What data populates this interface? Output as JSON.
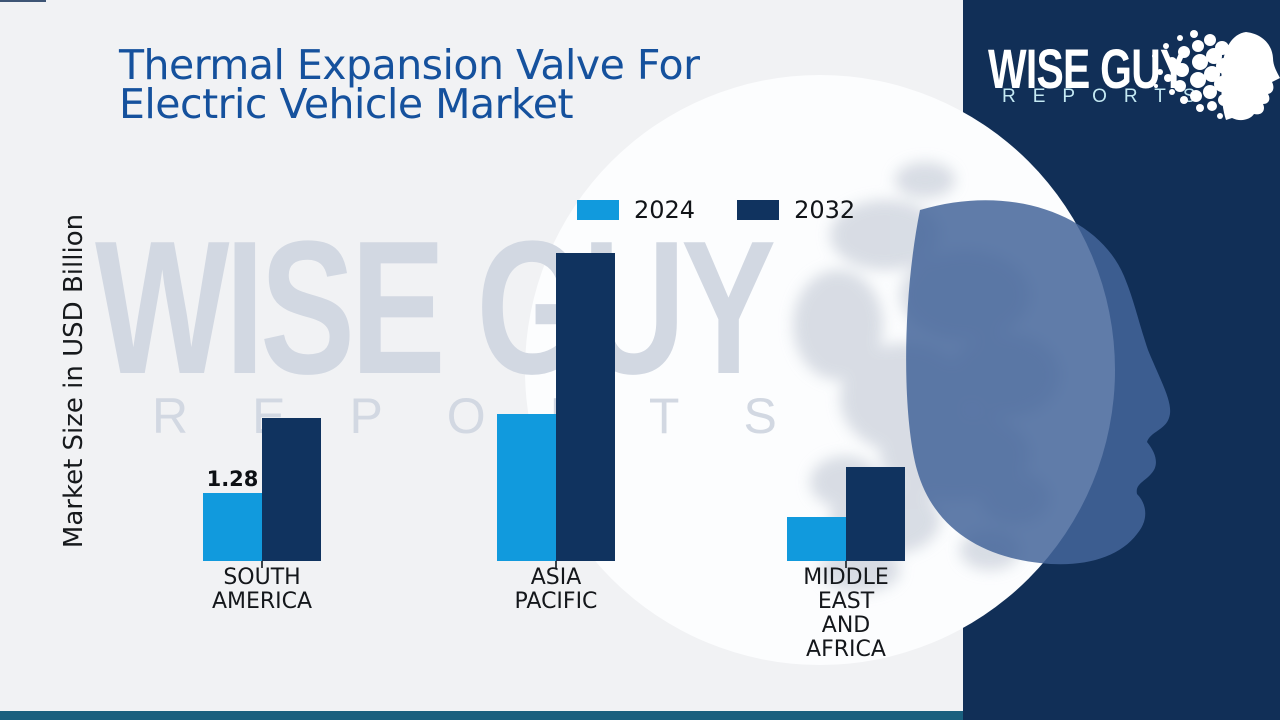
{
  "page": {
    "background_color": "#f1f2f4",
    "accent_teal": "#1a5f7e",
    "panel_navy": "#112f57",
    "title_color": "#15519d",
    "title_lines": [
      "Thermal Expansion Valve For",
      "Electric Vehicle Market"
    ]
  },
  "brand": {
    "wordmark_line1": "WISE GUY",
    "wordmark_line2": "REPORTS",
    "face_icon": "dotted-face-profile-icon"
  },
  "watermark": {
    "line1": "WISE GUY",
    "line2": "REPORTS"
  },
  "chart_data": {
    "type": "bar",
    "title": "Thermal Expansion Valve For Electric Vehicle Market",
    "ylabel": "Market Size in USD Billion",
    "categories": [
      "SOUTH\nAMERICA",
      "ASIA\nPACIFIC",
      "MIDDLE\nEAST\nAND\nAFRICA"
    ],
    "series": [
      {
        "name": "2024",
        "color": "#119add",
        "values": [
          1.28,
          2.77,
          0.83
        ]
      },
      {
        "name": "2032",
        "color": "#10335f",
        "values": [
          2.7,
          5.82,
          1.77
        ]
      }
    ],
    "value_labels": [
      {
        "series": "2024",
        "category_index": 0,
        "text": "1.28"
      }
    ],
    "ylim": [
      0,
      6.5
    ],
    "grid": false,
    "legend_position": "top-center"
  }
}
